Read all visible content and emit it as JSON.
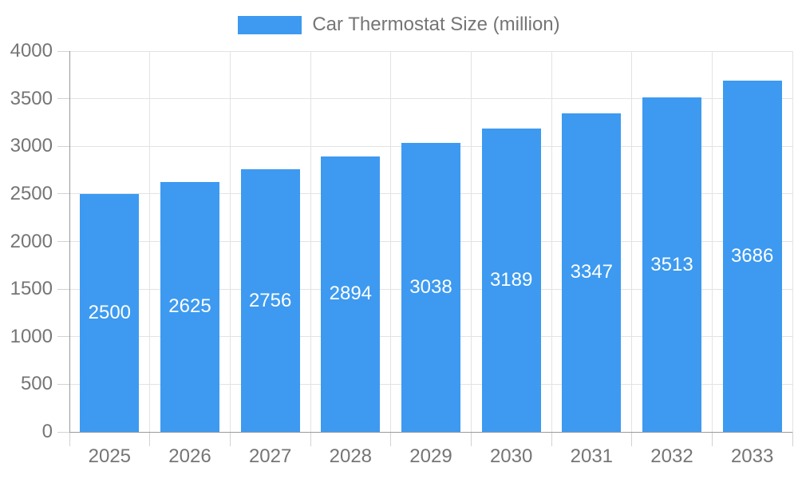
{
  "legend": {
    "label": "Car Thermostat Size (million)"
  },
  "chart_data": {
    "type": "bar",
    "title": "Car Thermostat Size (million)",
    "categories": [
      "2025",
      "2026",
      "2027",
      "2028",
      "2029",
      "2030",
      "2031",
      "2032",
      "2033"
    ],
    "values": [
      2500,
      2625,
      2756,
      2894,
      3038,
      3189,
      3347,
      3513,
      3686
    ],
    "xlabel": "",
    "ylabel": "",
    "ylim": [
      0,
      4000
    ],
    "ytick_step": 500,
    "yticks": [
      0,
      500,
      1000,
      1500,
      2000,
      2500,
      3000,
      3500,
      4000
    ],
    "grid": true,
    "legend_position": "top-center",
    "bar_value_labels": "inside-center"
  },
  "colors": {
    "bar": "#3D9AF0",
    "bar_label": "#FFFFFF",
    "axis_line": "#9A9A9A",
    "grid_line": "#E3E3E3",
    "tick_line": "#D2D2D2",
    "tick_label": "#757575",
    "legend_text": "#757575",
    "background": "#FFFFFF"
  }
}
